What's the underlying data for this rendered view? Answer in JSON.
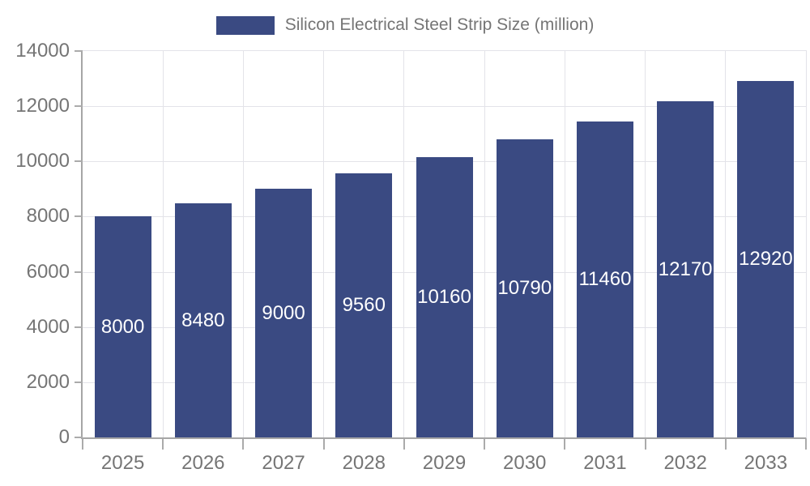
{
  "chart_data": {
    "type": "bar",
    "title": "Silicon Electrical Steel Strip Size (million)",
    "categories": [
      "2025",
      "2026",
      "2027",
      "2028",
      "2029",
      "2030",
      "2031",
      "2032",
      "2033"
    ],
    "values": [
      8000,
      8480,
      9000,
      9560,
      10160,
      10790,
      11460,
      12170,
      12920
    ],
    "xlabel": "",
    "ylabel": "",
    "ylim": [
      0,
      14000
    ],
    "ytick_step": 2000,
    "yticks": [
      0,
      2000,
      4000,
      6000,
      8000,
      10000,
      12000,
      14000
    ],
    "grid": true,
    "legend_position": "top-center",
    "bar_labels_inside": "middle",
    "colors": {
      "bar": "#3A4A82",
      "bar_label_text": "#FFFFFF",
      "axis_text": "#757575",
      "gridline": "#E3E3E9",
      "axis_line": "#A6A6A6",
      "tick_mark": "#ABABAB",
      "background": "#FFFFFF"
    }
  }
}
